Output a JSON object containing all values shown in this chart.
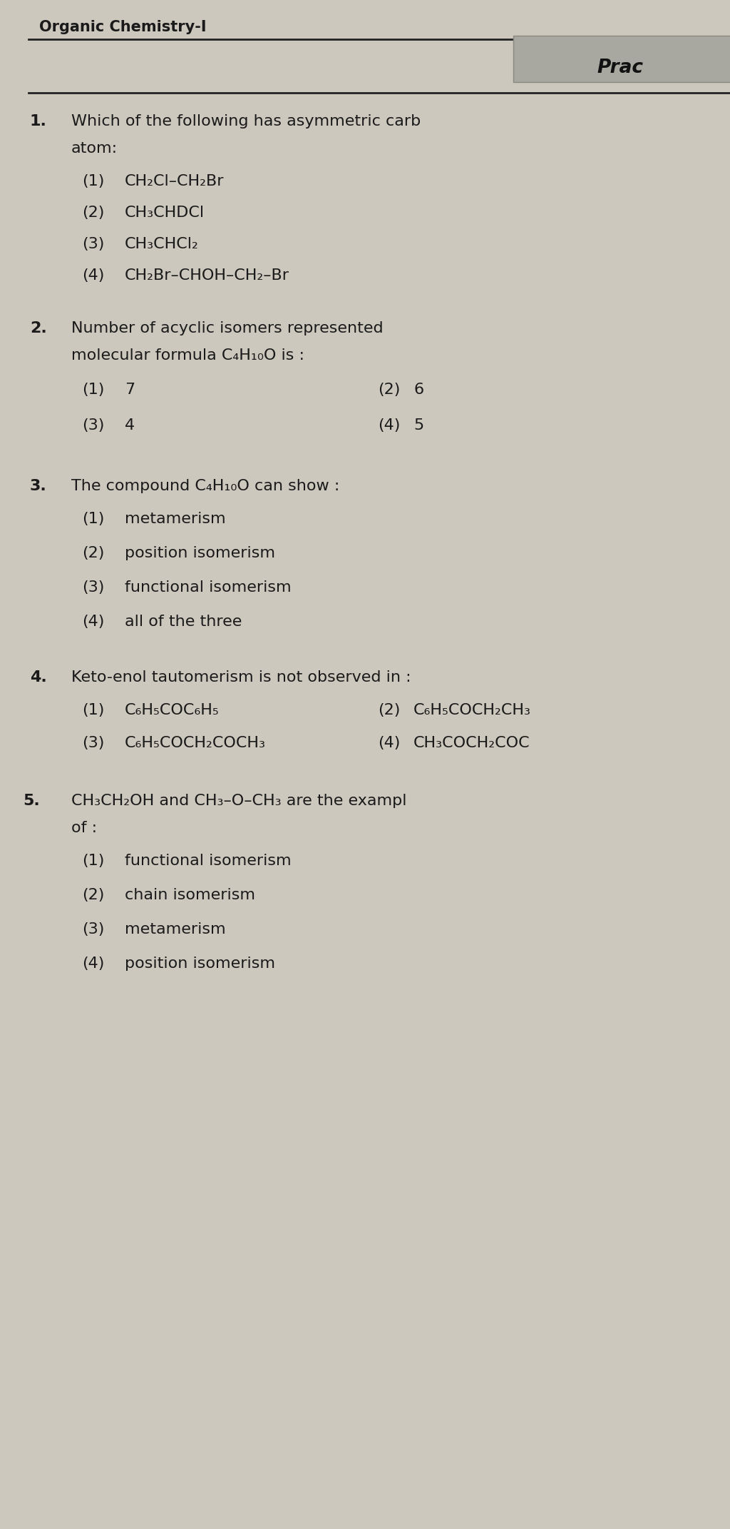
{
  "bg_color": "#cdc8be",
  "title": "Organic Chemistry-I",
  "prac_label": "Prac",
  "questions": [
    {
      "num": "1.",
      "text_line1": "Which of the following has asymmetric carb",
      "text_line2": "atom:",
      "options": [
        {
          "num": "(1)",
          "text": "CH₂Cl–CH₂Br"
        },
        {
          "num": "(2)",
          "text": "CH₃CHDCl"
        },
        {
          "num": "(3)",
          "text": "CH₃CHCl₂"
        },
        {
          "num": "(4)",
          "text": "CH₂Br–CHOH–CH₂–Br"
        }
      ]
    },
    {
      "num": "2.",
      "text_line1": "Number of acyclic isomers represented",
      "text_line2": "molecular formula C₄H₁₀O is :",
      "options_2col": [
        {
          "num": "(1)",
          "text": "7",
          "num2": "(2)",
          "text2": "6"
        },
        {
          "num": "(3)",
          "text": "4",
          "num2": "(4)",
          "text2": "5"
        }
      ]
    },
    {
      "num": "3.",
      "text_line1": "The compound C₄H₁₀O can show :",
      "text_line2": "",
      "options": [
        {
          "num": "(1)",
          "text": "metamerism"
        },
        {
          "num": "(2)",
          "text": "position isomerism"
        },
        {
          "num": "(3)",
          "text": "functional isomerism"
        },
        {
          "num": "(4)",
          "text": "all of the three"
        }
      ]
    },
    {
      "num": "4.",
      "text_line1": "Keto-enol tautomerism is not observed in :",
      "text_line2": "",
      "options_2col": [
        {
          "num": "(1)",
          "text": "C₆H₅COC₆H₅",
          "num2": "(2)",
          "text2": "C₆H₅COCH₂CH₃"
        },
        {
          "num": "(3)",
          "text": "C₆H₅COCH₂COCH₃",
          "num2": "(4)",
          "text2": "CH₃COCH₂COC"
        }
      ]
    },
    {
      "num": "5.",
      "text_line1": "CH₃CH₂OH and CH₃–O–CH₃ are the exampl",
      "text_line2": "of :",
      "options": [
        {
          "num": "(1)",
          "text": "functional isomerism"
        },
        {
          "num": "(2)",
          "text": "chain isomerism"
        },
        {
          "num": "(3)",
          "text": "metamerism"
        },
        {
          "num": "(4)",
          "text": "position isomerism"
        }
      ]
    }
  ],
  "text_color": "#1a1a1a",
  "line_color": "#222222",
  "prac_bg": "#a8a8a0",
  "title_fontsize": 15,
  "body_fontsize": 16,
  "opt_fontsize": 16,
  "q_num_fontsize": 16
}
